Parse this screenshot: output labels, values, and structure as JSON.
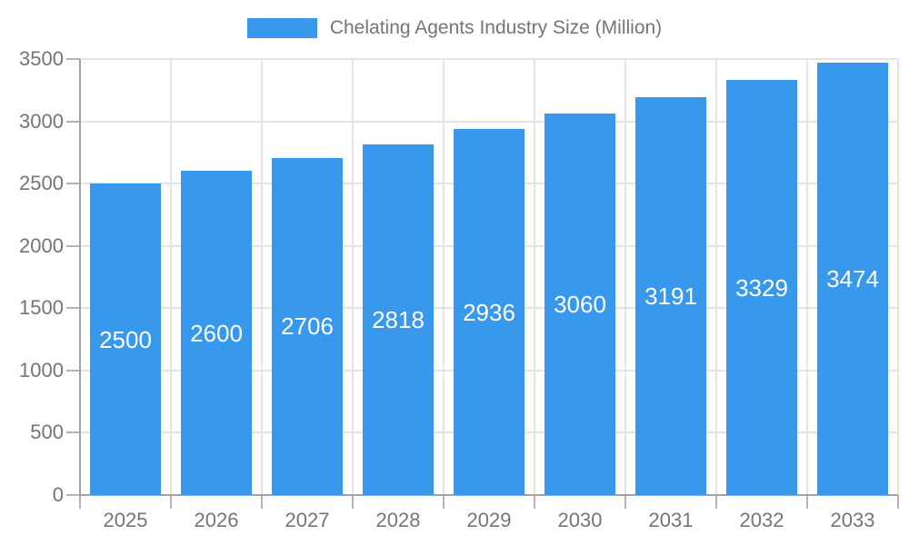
{
  "chart_data": {
    "type": "bar",
    "title": "Chelating Agents Industry Size (Million)",
    "categories": [
      "2025",
      "2026",
      "2027",
      "2028",
      "2029",
      "2030",
      "2031",
      "2032",
      "2033"
    ],
    "values": [
      2500,
      2600,
      2706,
      2818,
      2936,
      3060,
      3191,
      3329,
      3474
    ],
    "series": [
      {
        "name": "Chelating Agents Industry Size (Million)",
        "values": [
          2500,
          2600,
          2706,
          2818,
          2936,
          3060,
          3191,
          3329,
          3474
        ]
      }
    ],
    "value_labels_shown": [
      "2500",
      "2600",
      "2706",
      "2818",
      "2936",
      "3060",
      "3191",
      "3329",
      "3474"
    ],
    "xlabel": "",
    "ylabel": "",
    "ylim": [
      0,
      3500
    ],
    "yticks": [
      0,
      500,
      1000,
      1500,
      2000,
      2500,
      3000,
      3500
    ],
    "ytick_labels": [
      "0",
      "500",
      "1000",
      "1500",
      "2000",
      "2500",
      "3000",
      "3500"
    ],
    "grid": true,
    "grid_vertical": true,
    "legend_position": "top-center",
    "value_label_position": "inside-center",
    "colors": {
      "bar": "#3899EC",
      "bar_label": "#FFFFFF",
      "axis_text": "#757575",
      "legend_text": "#757575",
      "grid_line": "#E4E4E4",
      "axis_line": "#A3A3A3",
      "tick": "#B3B3B3",
      "background": "#FFFFFF"
    }
  }
}
